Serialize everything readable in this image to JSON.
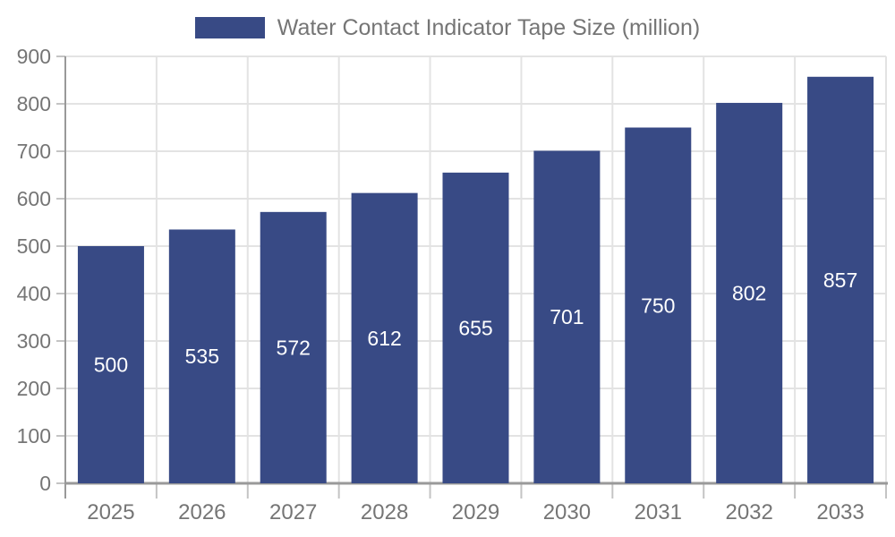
{
  "chart_data": {
    "type": "bar",
    "title": "Water Contact Indicator Tape Size (million)",
    "legend": "Water Contact Indicator Tape Size (million)",
    "legend_position": "top",
    "categories": [
      "2025",
      "2026",
      "2027",
      "2028",
      "2029",
      "2030",
      "2031",
      "2032",
      "2033"
    ],
    "values": [
      500,
      535,
      572,
      612,
      655,
      701,
      750,
      802,
      857
    ],
    "xlabel": "",
    "ylabel": "",
    "ylim": [
      0,
      900
    ],
    "ytick_step": 100,
    "ytick_labels": [
      "0",
      "100",
      "200",
      "300",
      "400",
      "500",
      "600",
      "700",
      "800",
      "900"
    ],
    "grid": true,
    "value_labels_visible": true,
    "colors": {
      "bar": "#384A85",
      "axis_line": "#999999",
      "tick_line": "#c4c4c4",
      "grid_line": "#e3e3e3",
      "tick_text": "#757575",
      "legend_text": "#757575",
      "value_label_text": "#ffffff",
      "background": "#ffffff"
    }
  }
}
